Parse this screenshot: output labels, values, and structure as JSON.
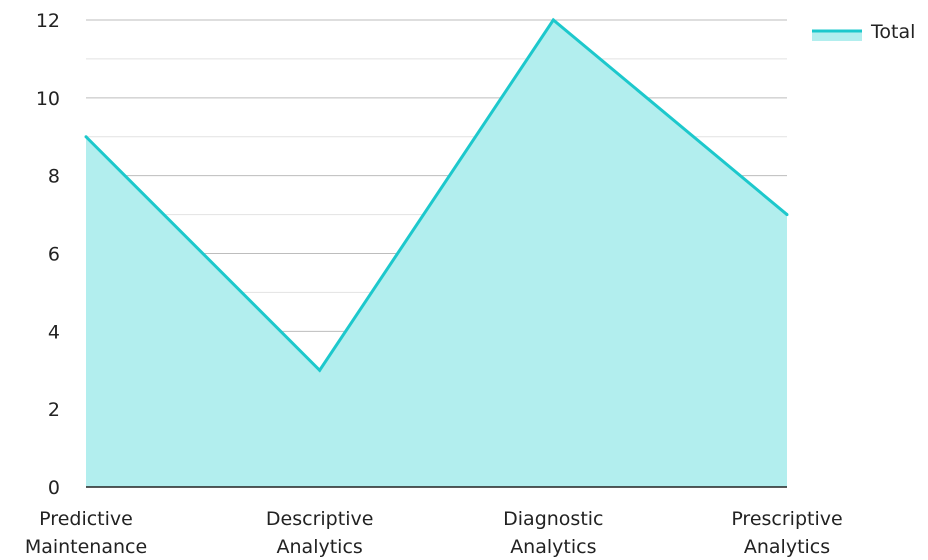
{
  "chart_data": {
    "type": "area",
    "categories": [
      "Predictive\nMaintenance",
      "Descriptive\nAnalytics",
      "Diagnostic\nAnalytics",
      "Prescriptive\nAnalytics"
    ],
    "series": [
      {
        "name": "Total",
        "values": [
          9,
          3,
          12,
          7
        ]
      }
    ],
    "ylim": [
      0,
      12
    ],
    "yticks": [
      0,
      2,
      4,
      6,
      8,
      10,
      12
    ],
    "grid": true,
    "legend_position": "top-right",
    "colors": {
      "line": "#1dc8cc",
      "fill": "#b2eeee",
      "grid_major": "#bdbdbd",
      "grid_minor": "#e2e2e2",
      "axis": "#222222"
    }
  }
}
